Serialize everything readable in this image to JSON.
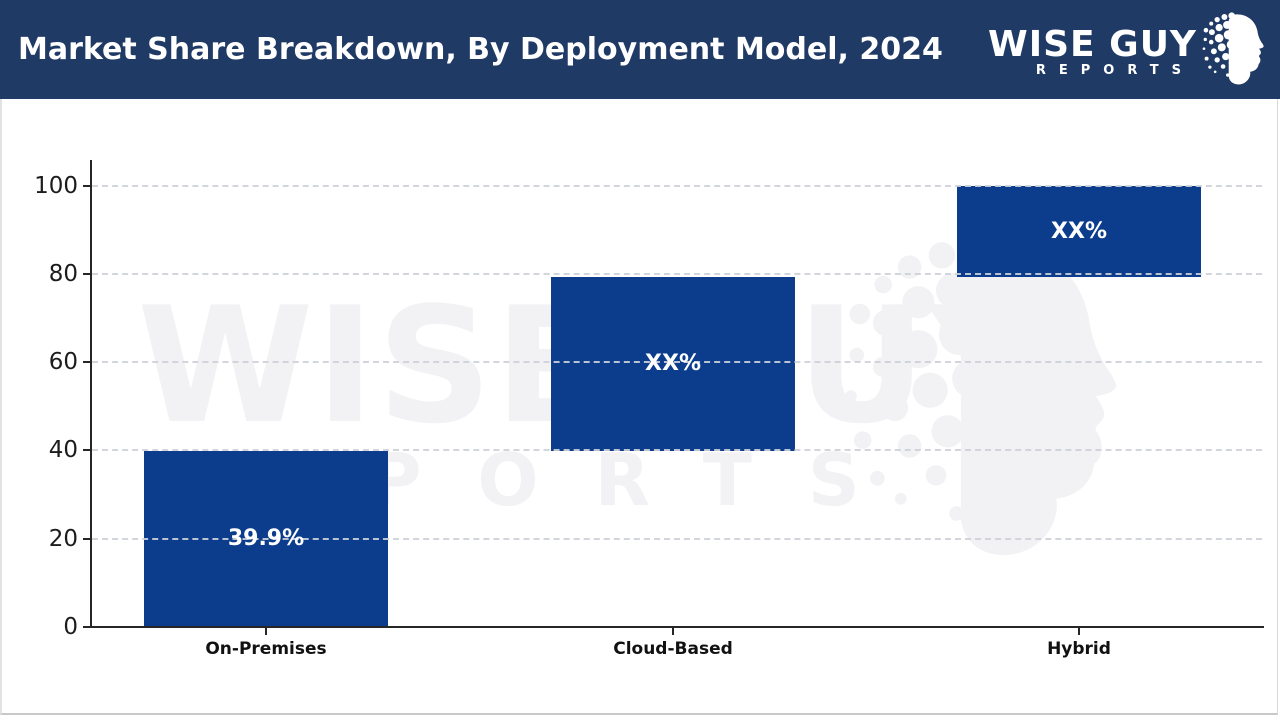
{
  "header": {
    "title": "Market Share Breakdown, By Deployment Model, 2024",
    "logo": {
      "line1": "WISE GUY",
      "line2": "REPORTS"
    }
  },
  "watermark": {
    "line1": "WISE GUY",
    "line2": "REPORTS"
  },
  "colors": {
    "header_bg": "#203A66",
    "bar": "#0C3D8D",
    "bar_label": "#FFFFFF",
    "gridline": "#D5D9E0",
    "axis": "#262626",
    "watermark": "#F2F2F5"
  },
  "chart_data": {
    "type": "bar",
    "subtype": "floating-waterfall",
    "title": "Market Share Breakdown, By Deployment Model, 2024",
    "categories": [
      "On-Premises",
      "Cloud-Based",
      "Hybrid"
    ],
    "segments": [
      {
        "category": "On-Premises",
        "start": 0,
        "end": 39.9,
        "label": "39.9%"
      },
      {
        "category": "Cloud-Based",
        "start": 39.9,
        "end": 79.2,
        "label": "XX%"
      },
      {
        "category": "Hybrid",
        "start": 79.2,
        "end": 100,
        "label": "XX%"
      }
    ],
    "xlabel": "",
    "ylabel": "",
    "ylim": [
      0,
      100
    ],
    "yticks": [
      0,
      20,
      40,
      60,
      80,
      100
    ],
    "grid": "horizontal-dashed",
    "legend": "none"
  }
}
